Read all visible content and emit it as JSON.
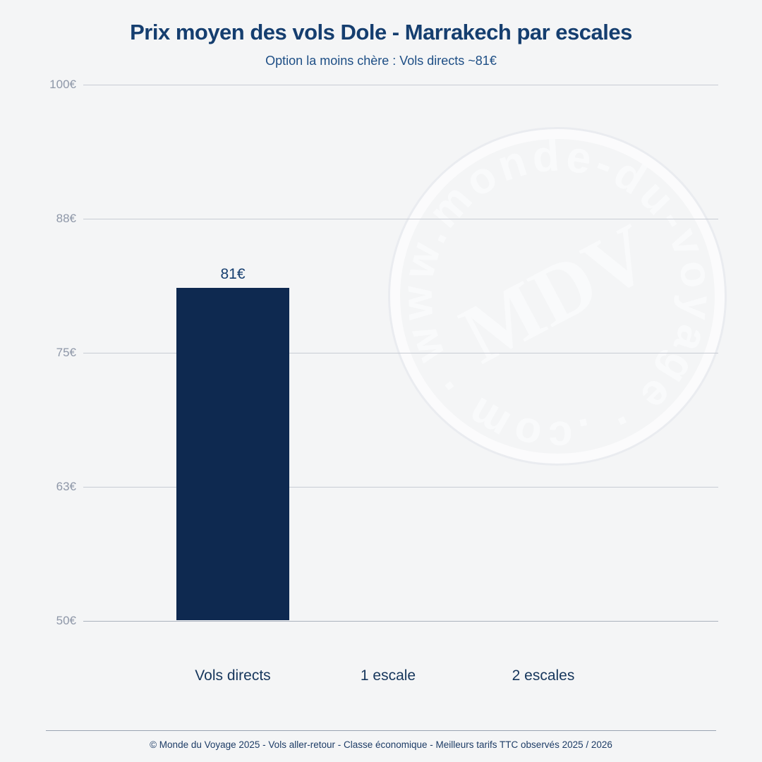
{
  "title": "Prix moyen des vols Dole - Marrakech par escales",
  "subtitle": "Option la moins chère : Vols directs ~81€",
  "chart_data": {
    "type": "bar",
    "title": "Prix moyen des vols Dole - Marrakech par escales",
    "subtitle": "Option la moins chère : Vols directs ~81€",
    "categories": [
      "Vols directs",
      "1 escale",
      "2 escales"
    ],
    "values": [
      81,
      null,
      null
    ],
    "value_label": "81€",
    "xlabel": "",
    "ylabel": "",
    "ylim": [
      50,
      100
    ],
    "yticks": [
      100,
      88,
      75,
      63,
      50
    ],
    "ytick_labels": [
      "100€",
      "88€",
      "75€",
      "63€",
      "50€"
    ],
    "grid": true,
    "legend": "none",
    "bar_color": "#0e2950"
  },
  "watermark": {
    "ring_text": "www.monde-du-voyage · .com ·",
    "center_text": "MDV"
  },
  "footer": {
    "text": "© Monde du Voyage 2025 - Vols aller-retour - Classe économique - Meilleurs tarifs TTC observés 2025 / 2026"
  },
  "colors": {
    "title": "#153e6f",
    "subtitle": "#1d4e85",
    "bar": "#0e2950",
    "grid": "#c8ccd4",
    "tick_label": "#8e97a8",
    "category_label": "#16365c",
    "footer_text": "#1d3c66",
    "background": "#f4f5f6"
  }
}
